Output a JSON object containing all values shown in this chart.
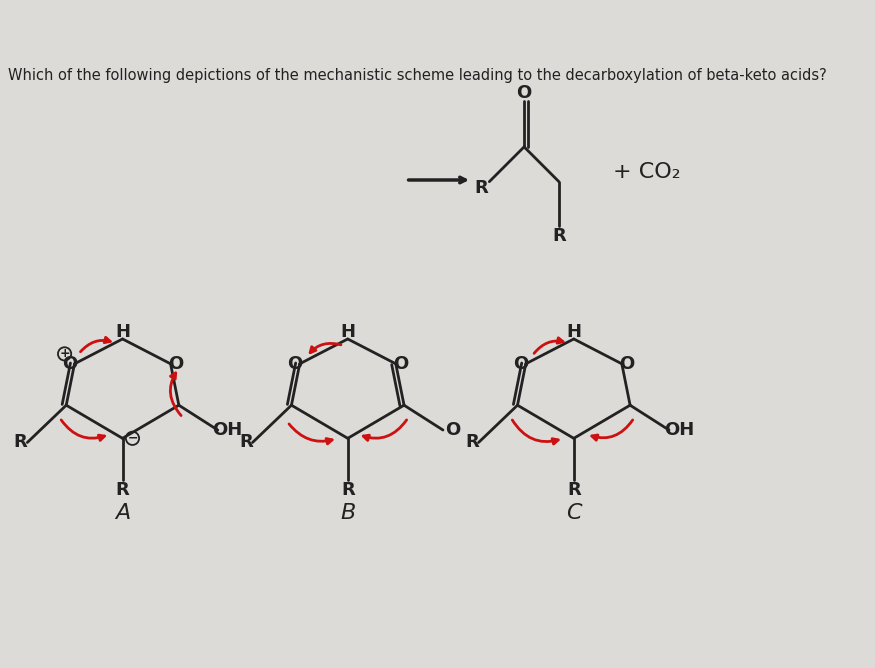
{
  "title": "Which of the following depictions of the mechanistic scheme leading to the decarboxylation of beta-keto acids?",
  "bg_color": "#dddbd8",
  "text_color": "#1a1a1a",
  "arrow_color": "#cc1111",
  "bond_color": "#222222",
  "label_A": "A",
  "label_B": "B",
  "label_C": "C",
  "plus_co2": "+ CO₂",
  "fig_width": 8.75,
  "fig_height": 6.68
}
